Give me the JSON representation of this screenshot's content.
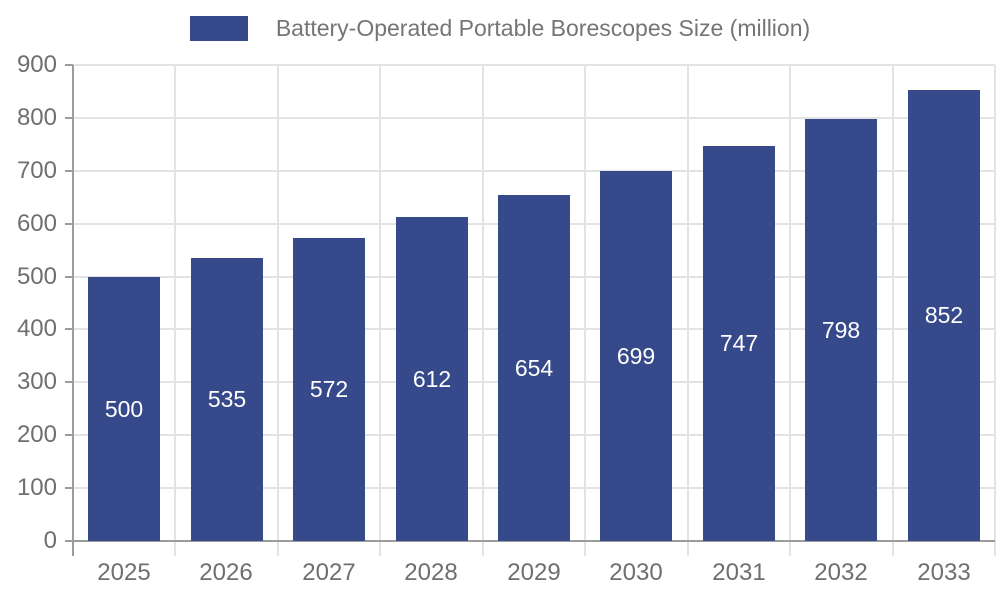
{
  "chart_data": {
    "type": "bar",
    "title": "",
    "legend": "Battery-Operated Portable Borescopes Size (million)",
    "legend_position": "top",
    "categories": [
      "2025",
      "2026",
      "2027",
      "2028",
      "2029",
      "2030",
      "2031",
      "2032",
      "2033"
    ],
    "values": [
      500,
      535,
      572,
      612,
      654,
      699,
      747,
      798,
      852
    ],
    "y_ticks": [
      0,
      100,
      200,
      300,
      400,
      500,
      600,
      700,
      800,
      900
    ],
    "ylim": [
      0,
      900
    ],
    "xlabel": "",
    "ylabel": "",
    "grid": true,
    "bar_labels_shown": true,
    "colors": {
      "bar": "#364A8B",
      "bar_label": "#ffffff",
      "axis_line": "#9c9c9c",
      "gridline": "#e3e3e3",
      "axis_label": "#6f6f6f",
      "legend_text": "#757575"
    }
  }
}
